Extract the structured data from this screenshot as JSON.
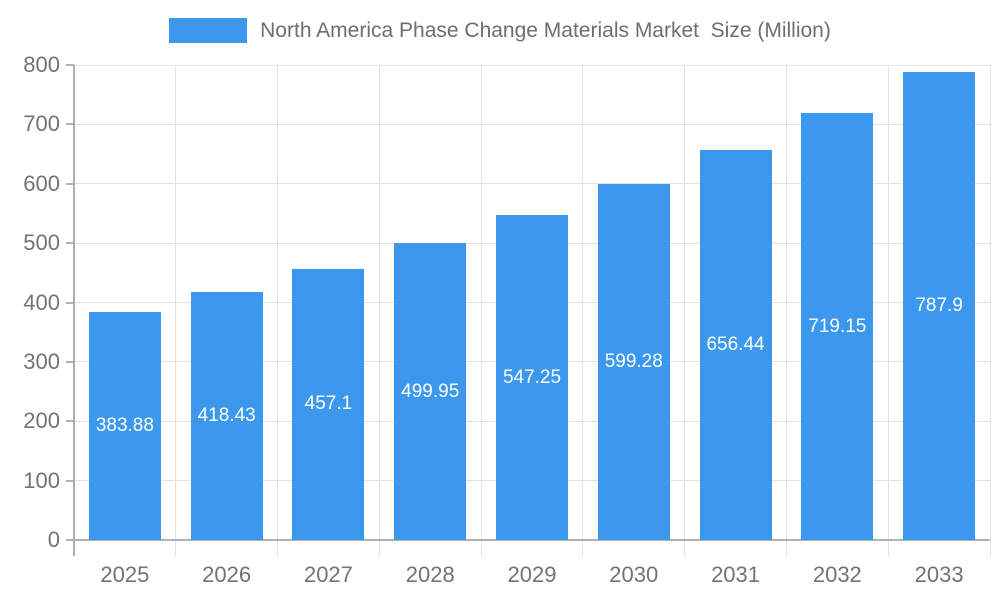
{
  "chart_data": {
    "type": "bar",
    "title": "North America Phase Change Materials Market  Size (Million)",
    "legend_entries": [
      "North America Phase Change Materials Market  Size (Million)"
    ],
    "legend_position": "top-center",
    "categories": [
      "2025",
      "2026",
      "2027",
      "2028",
      "2029",
      "2030",
      "2031",
      "2032",
      "2033"
    ],
    "values": [
      383.88,
      418.43,
      457.1,
      499.95,
      547.25,
      599.28,
      656.44,
      719.15,
      787.9
    ],
    "xlabel": "",
    "ylabel": "",
    "ylim": [
      0,
      800
    ],
    "ytick_step": 100,
    "yticks": [
      0,
      100,
      200,
      300,
      400,
      500,
      600,
      700,
      800
    ],
    "grid": true,
    "colors": {
      "bar": "#3b98ed",
      "grid": "#e2e2e2",
      "axis": "#b0b0b0",
      "tick_label": "#737373",
      "title": "#6e6e6e",
      "bar_value_label": "#ffffff"
    }
  }
}
